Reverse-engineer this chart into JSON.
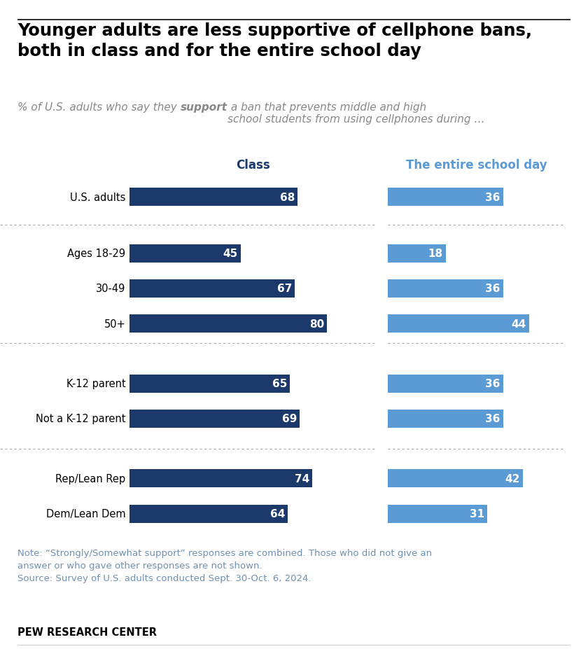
{
  "title": "Younger adults are less supportive of cellphone bans,\nboth in class and for the entire school day",
  "subtitle_plain": "% of U.S. adults who say they ",
  "subtitle_bold": "support",
  "subtitle_rest": " a ban that prevents middle and high\nschool students from using cellphones during …",
  "col1_label": "Class",
  "col2_label": "The entire school day",
  "categories": [
    "U.S. adults",
    "Ages 18-29",
    "30-49",
    "50+",
    "K-12 parent",
    "Not a K-12 parent",
    "Rep/Lean Rep",
    "Dem/Lean Dem"
  ],
  "class_values": [
    68,
    45,
    67,
    80,
    65,
    69,
    74,
    64
  ],
  "school_values": [
    36,
    18,
    36,
    44,
    36,
    36,
    42,
    31
  ],
  "dark_blue": "#1B3A6B",
  "light_blue": "#5B9BD5",
  "col1_label_color": "#1B3A6B",
  "col2_label_color": "#5B9BD5",
  "bar_height": 0.52,
  "note_text": "Note: “Strongly/Somewhat support” responses are combined. Those who did not give an\nanswer or who gave other responses are not shown.\nSource: Survey of U.S. adults conducted Sept. 30-Oct. 6, 2024.",
  "footer": "PEW RESEARCH CENTER",
  "note_color": "#7090B0",
  "title_color": "#000000",
  "subtitle_color": "#888888",
  "bg_color": "#FFFFFF"
}
